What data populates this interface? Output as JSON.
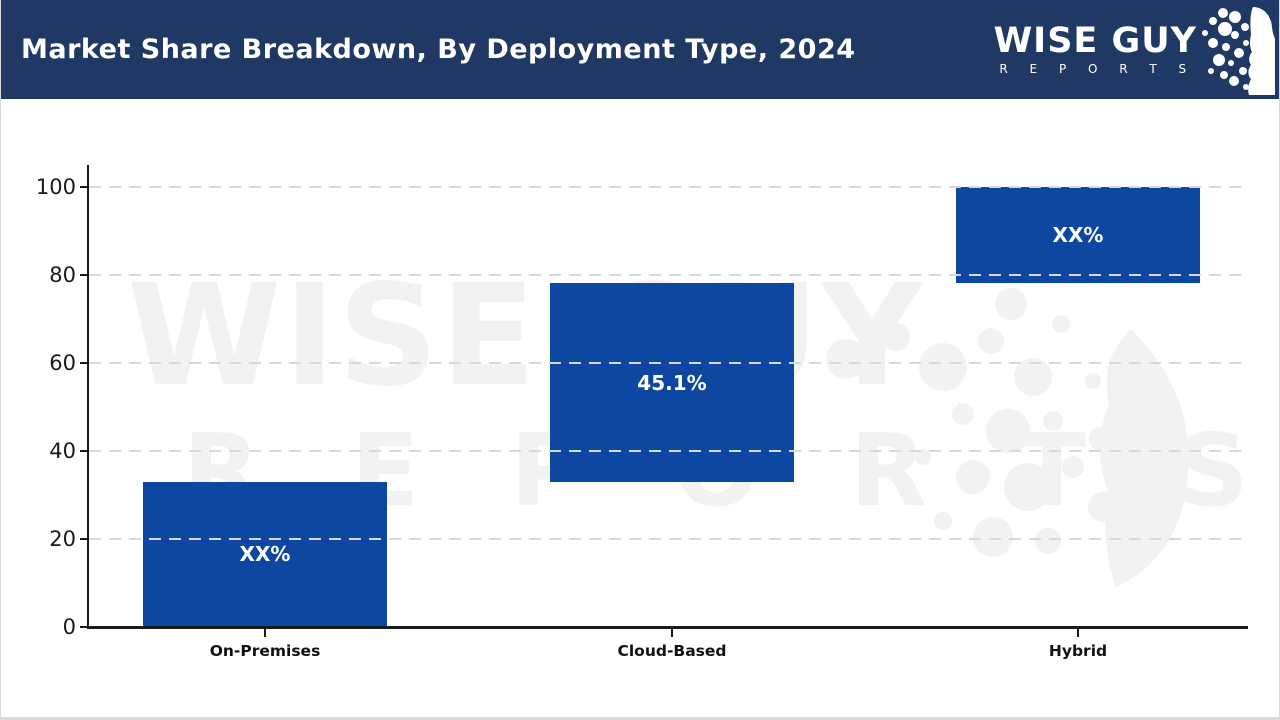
{
  "header": {
    "title": "Market Share Breakdown, By Deployment Type, 2024",
    "logo": {
      "line1": "WISE GUY",
      "line2": "R E P O R T S"
    }
  },
  "watermark": {
    "line1": "WISE GUY",
    "line2": "R E P O R T S"
  },
  "colors": {
    "header_bg": "#1f3864",
    "bar": "#0d47a1",
    "bar_label": "#ffffff",
    "gridline": "#d8d8d8",
    "axis": "#1a1a1a",
    "watermark": "#f2f2f4"
  },
  "chart_data": {
    "type": "bar",
    "subtype": "waterfall",
    "title": "Market Share Breakdown, By Deployment Type, 2024",
    "categories": [
      "On-Premises",
      "Cloud-Based",
      "Hybrid"
    ],
    "series": [
      {
        "name": "Market Share %",
        "starts": [
          0,
          33,
          78.1
        ],
        "values": [
          33,
          45.1,
          21.9
        ]
      }
    ],
    "bar_labels": [
      "XX%",
      "45.1%",
      "XX%"
    ],
    "xlabel": "",
    "ylabel": "",
    "ylim": [
      0,
      105
    ],
    "yticks": [
      0,
      20,
      40,
      60,
      80,
      100
    ],
    "grid": "horizontal-dashed",
    "legend": "none"
  }
}
